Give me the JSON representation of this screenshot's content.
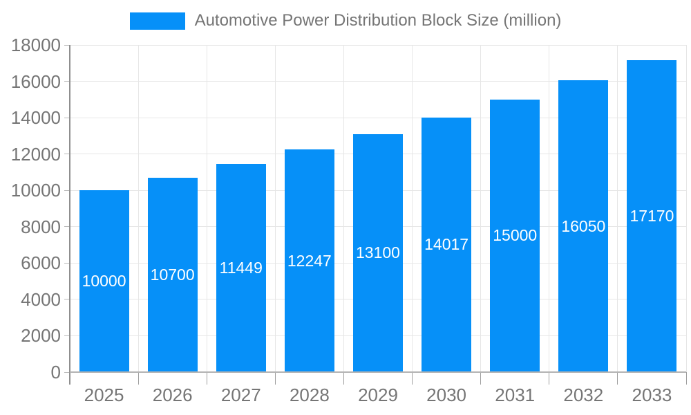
{
  "chart_data": {
    "type": "bar",
    "title": "Automotive Power Distribution Block Size (million)",
    "legend_entries": [
      "Automotive Power Distribution Block Size (million)"
    ],
    "legend_position": "top",
    "categories": [
      "2025",
      "2026",
      "2027",
      "2028",
      "2029",
      "2030",
      "2031",
      "2032",
      "2033"
    ],
    "values": [
      10000,
      10700,
      11449,
      12247,
      13100,
      14017,
      15000,
      16050,
      17170
    ],
    "xlabel": "",
    "ylabel": "",
    "ylim": [
      0,
      18000
    ],
    "ytick_step": 2000,
    "ytick_labels": [
      "0",
      "2000",
      "4000",
      "6000",
      "8000",
      "10000",
      "12000",
      "14000",
      "16000",
      "18000"
    ],
    "grid": true,
    "value_labels_shown": true,
    "colors": {
      "bar": "#0690F8",
      "value_label": "#FFFFFF",
      "axis_text": "#757575",
      "grid_line": "#E6E6E6",
      "y_axis_line": "#8F8F8F",
      "x_axis_line": "#B3B3B3"
    }
  }
}
